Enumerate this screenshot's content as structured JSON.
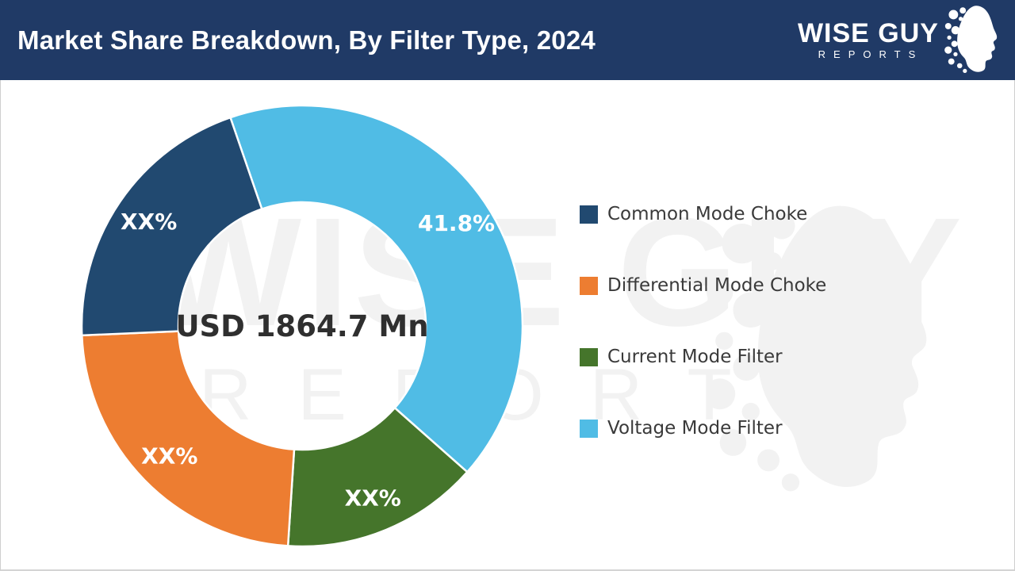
{
  "header": {
    "title": "Market Share Breakdown, By Filter Type, 2024",
    "bg_color": "#203A66",
    "logo": {
      "line1": "WISE GUY",
      "line2": "REPORTS"
    }
  },
  "watermark": {
    "line1": "WISE GUY",
    "line2": "REPORTS",
    "color": "#f2f2f2"
  },
  "chart_data": {
    "type": "pie",
    "donut": true,
    "title": "Market Share Breakdown, By Filter Type, 2024",
    "center_label": "USD 1864.7 Mn",
    "legend_position": "right",
    "start_angle_deg": -19,
    "render_order_clockwise": [
      3,
      2,
      1,
      0
    ],
    "segments": [
      {
        "name": "Common Mode Choke",
        "label": "XX%",
        "pct": 20.4,
        "value_shown": false,
        "color": "#214970"
      },
      {
        "name": "Differential Mode Choke",
        "label": "XX%",
        "pct": 23.3,
        "value_shown": false,
        "color": "#ED7D31"
      },
      {
        "name": "Current Mode Filter",
        "label": "XX%",
        "pct": 14.5,
        "value_shown": false,
        "color": "#45752B"
      },
      {
        "name": "Voltage Mode Filter",
        "label": "41.8%",
        "pct": 41.8,
        "value_shown": true,
        "color": "#50BCE5"
      }
    ]
  }
}
